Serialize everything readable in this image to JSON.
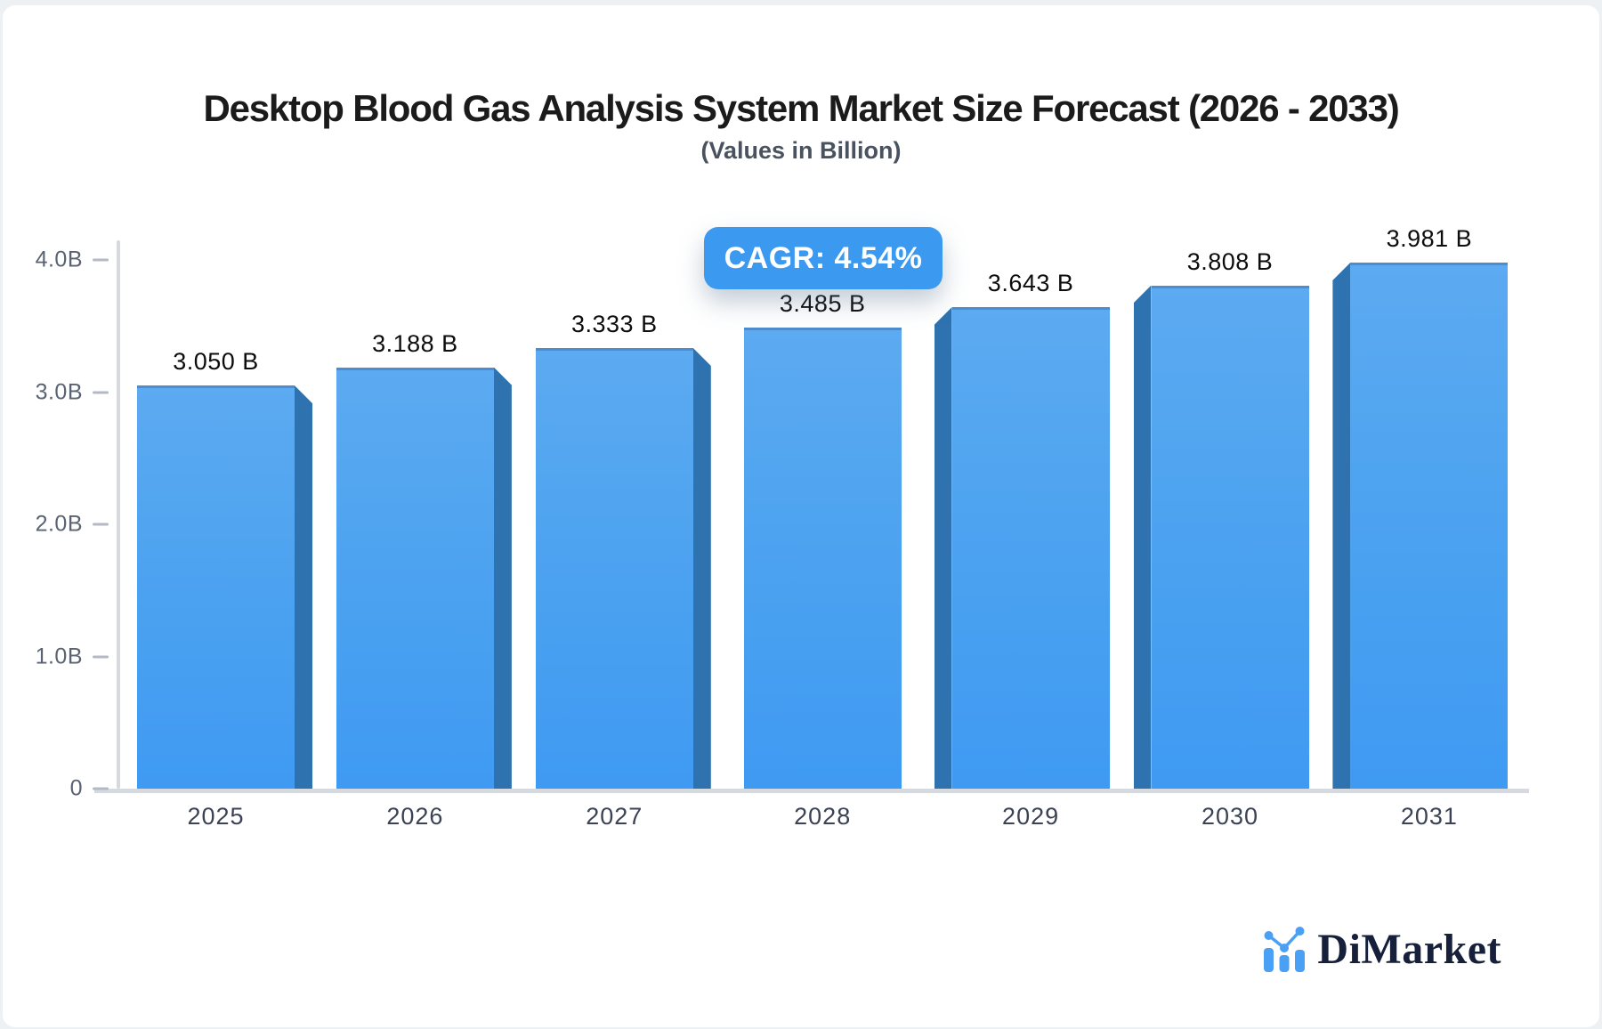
{
  "title": "Desktop Blood Gas Analysis System Market Size Forecast (2026 - 2033)",
  "subtitle": "(Values in Billion)",
  "cagr_badge": {
    "label": "CAGR: 4.54%"
  },
  "logo": {
    "text": "DiMarket",
    "icon": "mini-bar-chart-icon"
  },
  "colors": {
    "bar_face_top": "#5caaf1",
    "bar_face_bottom": "#3f9af2",
    "bar_side": "#2e73b0",
    "bar_top_edge": "#4d8dcd",
    "badge_background": "#3b9af0",
    "axis_gray": "#d6d9dd",
    "tick_dash": "#b3bac4",
    "y_label": "#5a6372",
    "x_label": "#3a4254",
    "title_text": "#1b1b1b",
    "subtitle_text": "#4a5260",
    "logo_navy": "#16203a",
    "logo_blue": "#4aa0f5"
  },
  "chart_data": {
    "type": "bar",
    "title": "Desktop Blood Gas Analysis System Market Size Forecast (2026 - 2033)",
    "subtitle": "(Values in Billion)",
    "categories": [
      "2025",
      "2026",
      "2027",
      "2028",
      "2029",
      "2030",
      "2031"
    ],
    "values": [
      3.05,
      3.188,
      3.333,
      3.485,
      3.643,
      3.808,
      3.981
    ],
    "value_labels": [
      "3.050 B",
      "3.188 B",
      "3.333 B",
      "3.485 B",
      "3.643 B",
      "3.808 B",
      "3.981 B"
    ],
    "unit": "Billion",
    "ylim": [
      0,
      4.0
    ],
    "yticks": [
      {
        "value": 0,
        "label": "0"
      },
      {
        "value": 1.0,
        "label": "1.0B"
      },
      {
        "value": 2.0,
        "label": "2.0B"
      },
      {
        "value": 3.0,
        "label": "3.0B"
      },
      {
        "value": 4.0,
        "label": "4.0B"
      }
    ],
    "cagr": "4.54%",
    "grid": false,
    "legend": false,
    "bar_style": "3d-beveled, side face toward chart center"
  }
}
